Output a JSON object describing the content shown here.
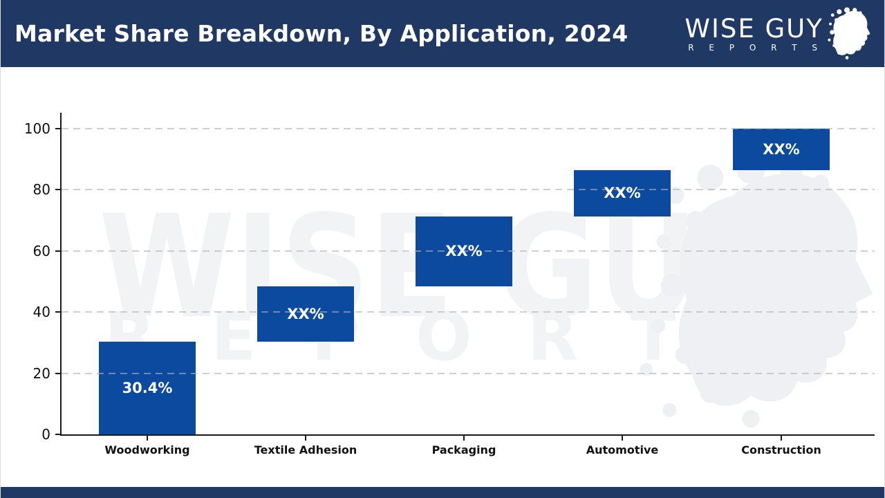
{
  "header": {
    "title": "Market Share Breakdown, By Application, 2024",
    "logo": {
      "line1": "WISE GUY",
      "line2": "R E P O R T S"
    }
  },
  "watermark": {
    "line1": "WISE GUY",
    "line2": "REPORTS"
  },
  "colors": {
    "header_bg": "#1f3864",
    "bar": "#0b4a9f",
    "bar_label_text": "#ffffff",
    "axis": "#1a1a1a",
    "grid": "#bdbdbd",
    "watermark": "#f2f3f5"
  },
  "chart_data": {
    "type": "bar",
    "subtype": "waterfall",
    "title": "Market Share Breakdown, By Application, 2024",
    "categories": [
      "Woodworking",
      "Textile Adhesion",
      "Packaging",
      "Automotive",
      "Construction"
    ],
    "segments": [
      {
        "category": "Woodworking",
        "start": 0,
        "end": 30.4,
        "label": "30.4%"
      },
      {
        "category": "Textile Adhesion",
        "start": 30.4,
        "end": 48.4,
        "label": "XX%"
      },
      {
        "category": "Packaging",
        "start": 48.4,
        "end": 71.3,
        "label": "XX%"
      },
      {
        "category": "Automotive",
        "start": 71.3,
        "end": 86.4,
        "label": "XX%"
      },
      {
        "category": "Construction",
        "start": 86.4,
        "end": 100,
        "label": "XX%"
      }
    ],
    "xlabel": "",
    "ylabel": "",
    "ylim": [
      0,
      105
    ],
    "yticks": [
      0,
      20,
      40,
      60,
      80,
      100
    ],
    "gridlines": [
      20,
      40,
      60,
      80,
      100
    ],
    "grid": "dashed-horizontal-over-bars",
    "legend": "none"
  }
}
